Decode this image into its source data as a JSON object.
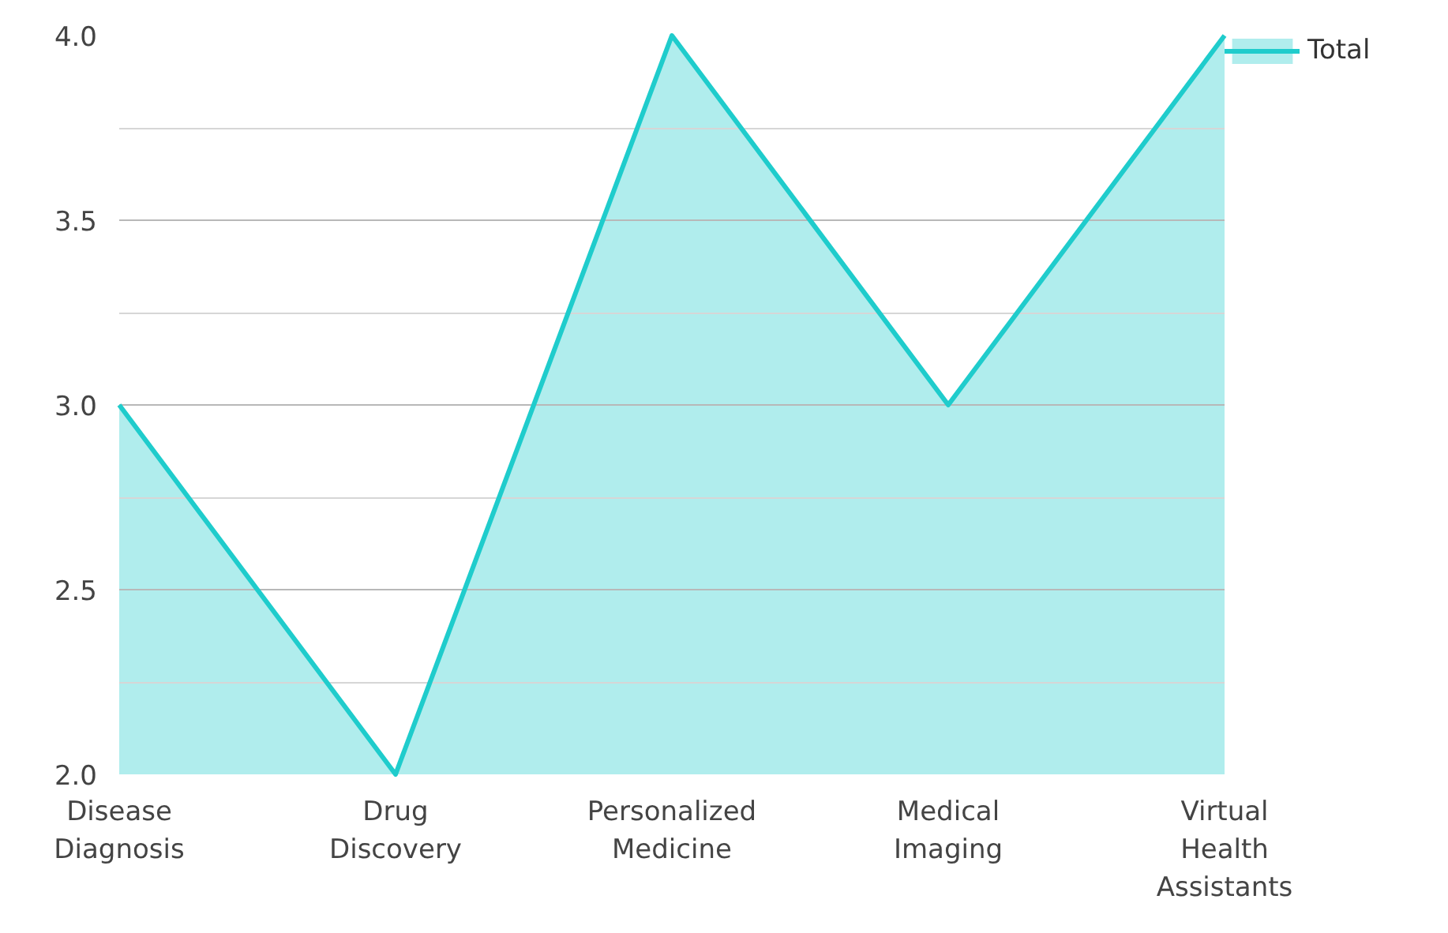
{
  "chart_data": {
    "type": "area",
    "categories": [
      "Disease Diagnosis",
      "Drug Discovery",
      "Personalized Medicine",
      "Medical Imaging",
      "Virtual Health Assistants"
    ],
    "series": [
      {
        "name": "Total",
        "color": "#1fcccc",
        "values": [
          3,
          2,
          4,
          3,
          4
        ]
      }
    ],
    "ylim": [
      2,
      4
    ],
    "yticks": [
      {
        "value": 2,
        "label": "2.0"
      },
      {
        "value": 2.25,
        "label": null
      },
      {
        "value": 2.5,
        "label": "2.5"
      },
      {
        "value": 2.75,
        "label": null
      },
      {
        "value": 3,
        "label": "3.0"
      },
      {
        "value": 3.25,
        "label": null
      },
      {
        "value": 3.5,
        "label": "3.5"
      },
      {
        "value": 3.75,
        "label": null
      },
      {
        "value": 4,
        "label": "4.0"
      }
    ],
    "grid": "y",
    "legend": "top right"
  }
}
